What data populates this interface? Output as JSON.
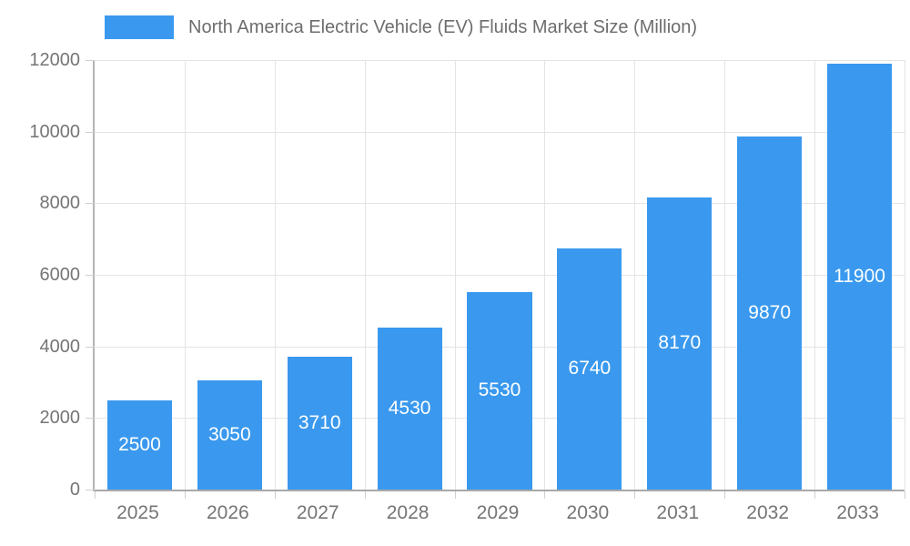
{
  "legend": {
    "label": "North America Electric Vehicle (EV) Fluids Market Size (Million)"
  },
  "chart_data": {
    "type": "bar",
    "title": "North America Electric Vehicle (EV) Fluids Market Size (Million)",
    "categories": [
      "2025",
      "2026",
      "2027",
      "2028",
      "2029",
      "2030",
      "2031",
      "2032",
      "2033"
    ],
    "values": [
      2500,
      3050,
      3710,
      4530,
      5530,
      6740,
      8170,
      9870,
      11900
    ],
    "xlabel": "",
    "ylabel": "",
    "ylim": [
      0,
      12000
    ],
    "yticks": [
      0,
      2000,
      4000,
      6000,
      8000,
      10000,
      12000
    ],
    "grid": true,
    "legend_position": "top",
    "value_labels": "inside-center",
    "colors": {
      "bar": "#3A99EE",
      "bar_value_text": "#ffffff",
      "axis_text": "#757575",
      "legend_text": "#6d6d6d",
      "grid_line": "#e4e4e4",
      "axis_line": "#b4b4b4",
      "tick_mark": "#cfcfcf",
      "background": "#ffffff"
    }
  }
}
